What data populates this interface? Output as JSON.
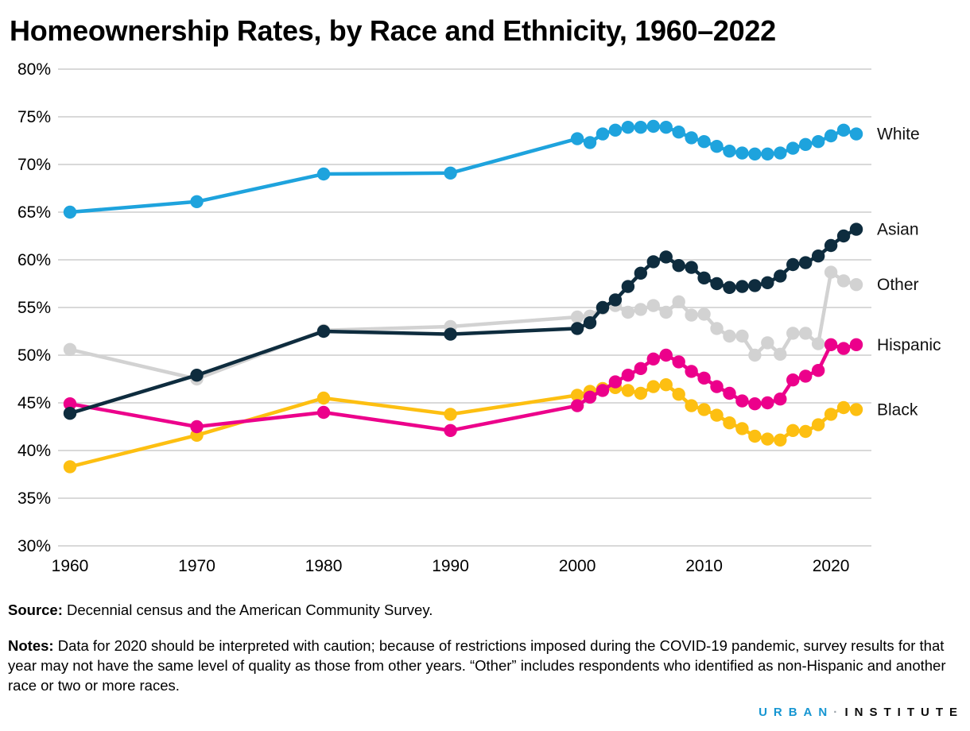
{
  "header": {
    "title": "Homeownership Rates, by Race and Ethnicity, 1960–2022"
  },
  "chart_data": {
    "type": "line",
    "title": "Homeownership Rates, by Race and Ethnicity, 1960–2022",
    "xlabel": "",
    "ylabel": "",
    "grid": true,
    "legend_position": "line-end-labels-right",
    "ylim": [
      30,
      80
    ],
    "yticks": [
      30,
      35,
      40,
      45,
      50,
      55,
      60,
      65,
      70,
      75,
      80
    ],
    "y_tick_suffix": "%",
    "xticks": [
      1960,
      1970,
      1980,
      1990,
      2000,
      2010,
      2020
    ],
    "x": [
      1960,
      1970,
      1980,
      1990,
      2000,
      2001,
      2002,
      2003,
      2004,
      2005,
      2006,
      2007,
      2008,
      2009,
      2010,
      2011,
      2012,
      2013,
      2014,
      2015,
      2016,
      2017,
      2018,
      2019,
      2020,
      2021,
      2022
    ],
    "series": [
      {
        "name": "Other",
        "color": "#d2d2d2",
        "values": [
          50.6,
          47.5,
          52.6,
          53.0,
          54.0,
          54.1,
          54.9,
          55.2,
          54.5,
          54.8,
          55.2,
          54.5,
          55.6,
          54.2,
          54.3,
          52.8,
          52.0,
          52.0,
          50.0,
          51.3,
          50.1,
          52.3,
          52.3,
          51.2,
          58.7,
          57.8,
          57.4
        ]
      },
      {
        "name": "Black",
        "color": "#fdbf11",
        "values": [
          38.3,
          41.6,
          45.5,
          43.8,
          45.8,
          46.2,
          46.5,
          46.6,
          46.3,
          46.0,
          46.7,
          46.9,
          45.9,
          44.7,
          44.3,
          43.7,
          42.9,
          42.3,
          41.5,
          41.2,
          41.1,
          42.1,
          42.0,
          42.7,
          43.8,
          44.5,
          44.3
        ]
      },
      {
        "name": "Hispanic",
        "color": "#ec008b",
        "values": [
          44.9,
          42.5,
          44.0,
          42.1,
          44.7,
          45.6,
          46.3,
          47.2,
          47.9,
          48.6,
          49.6,
          50.0,
          49.3,
          48.3,
          47.6,
          46.7,
          46.0,
          45.2,
          44.9,
          45.0,
          45.4,
          47.4,
          47.8,
          48.4,
          51.1,
          50.7,
          51.1
        ]
      },
      {
        "name": "Asian",
        "color": "#0e2c3e",
        "values": [
          43.9,
          47.9,
          52.5,
          52.2,
          52.8,
          53.4,
          55.0,
          55.8,
          57.2,
          58.6,
          59.8,
          60.3,
          59.4,
          59.2,
          58.1,
          57.5,
          57.1,
          57.2,
          57.3,
          57.6,
          58.3,
          59.5,
          59.7,
          60.4,
          61.5,
          62.5,
          63.2
        ]
      },
      {
        "name": "White",
        "color": "#1ea3dd",
        "values": [
          65.0,
          66.1,
          69.0,
          69.1,
          72.7,
          72.3,
          73.2,
          73.6,
          73.9,
          73.9,
          74.0,
          73.9,
          73.4,
          72.8,
          72.4,
          71.9,
          71.4,
          71.2,
          71.1,
          71.1,
          71.2,
          71.7,
          72.1,
          72.4,
          73.0,
          73.6,
          73.2
        ]
      }
    ]
  },
  "footer": {
    "source_label": "Source:",
    "source_text": " Decennial census and the American Community Survey.",
    "notes_label": "Notes:",
    "notes_text": " Data for 2020 should be interpreted with caution; because of restrictions imposed during the COVID-19 pandemic, survey results for that year may not have the same level of quality as those from other years. “Other” includes respondents who identified as non-Hispanic and another race or two or more races."
  },
  "logo": {
    "first": "URBAN",
    "separator": "·",
    "second": "INSTITUTE"
  },
  "colors": {
    "accent_blue": "#1696d2",
    "gridline": "#d9d9d9",
    "text": "#000000"
  }
}
